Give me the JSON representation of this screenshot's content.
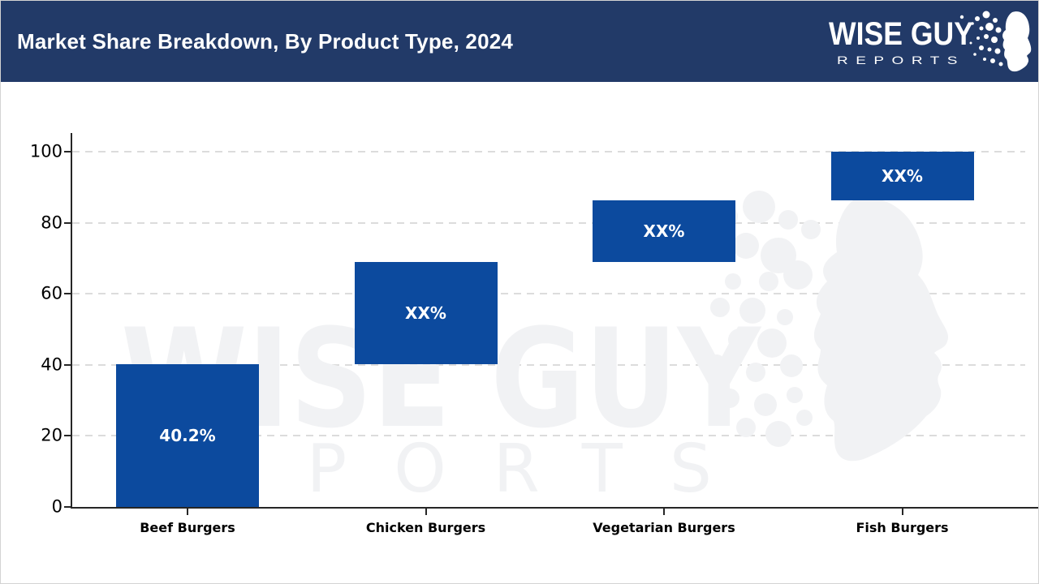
{
  "header": {
    "title": "Market Share Breakdown, By Product Type, 2024",
    "brand": {
      "line1": "WISE GUY",
      "line2": "REPORTS"
    },
    "background": "#223a68"
  },
  "watermark": {
    "text_main": "WISE GUY",
    "text_sub": "REPORTS"
  },
  "colors": {
    "header_bg": "#223a68",
    "bar_fill": "#0c4a9e",
    "bar_label": "#ffffff",
    "gridline": "#dcdcdc",
    "axis": "#262626",
    "watermark": "#f1f2f4"
  },
  "chart_data": {
    "type": "bar",
    "subtype": "waterfall",
    "title": "Market Share Breakdown, By Product Type, 2024",
    "xlabel": "",
    "ylabel": "",
    "categories": [
      "Beef Burgers",
      "Chicken Burgers",
      "Vegetarian Burgers",
      "Fish Burgers"
    ],
    "segments": [
      {
        "category": "Beef Burgers",
        "start": 0,
        "end": 40.2,
        "label": "40.2%"
      },
      {
        "category": "Chicken Burgers",
        "start": 40.2,
        "end": 68.9,
        "label": "XX%"
      },
      {
        "category": "Vegetarian Burgers",
        "start": 68.9,
        "end": 86.3,
        "label": "XX%"
      },
      {
        "category": "Fish Burgers",
        "start": 86.3,
        "end": 100,
        "label": "XX%"
      }
    ],
    "values": [
      40.2,
      28.7,
      17.4,
      13.7
    ],
    "value_labels": [
      "40.2%",
      "XX%",
      "XX%",
      "XX%"
    ],
    "ylim": [
      0,
      100
    ],
    "yticks": [
      0,
      20,
      40,
      60,
      80,
      100
    ],
    "grid": "horizontal dashed",
    "legend": "none",
    "bar_color": "#0c4a9e"
  }
}
